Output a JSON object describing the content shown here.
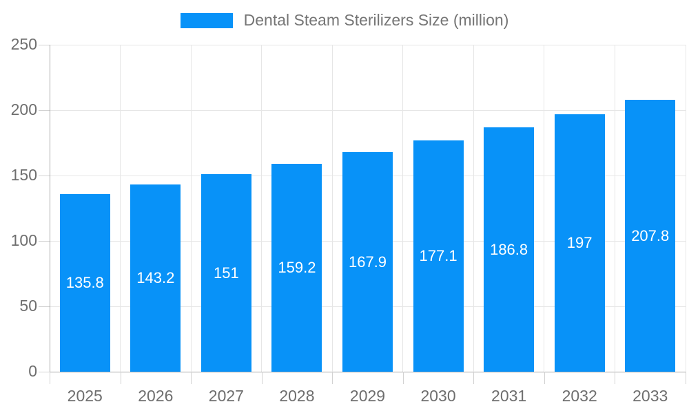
{
  "chart_data": {
    "type": "bar",
    "title": "",
    "series_name": "Dental Steam Sterilizers Size (million)",
    "categories": [
      "2025",
      "2026",
      "2027",
      "2028",
      "2029",
      "2030",
      "2031",
      "2032",
      "2033"
    ],
    "values": [
      135.8,
      143.2,
      151,
      159.2,
      167.9,
      177.1,
      186.8,
      197,
      207.8
    ],
    "labels": [
      "135.8",
      "143.2",
      "151",
      "159.2",
      "167.9",
      "177.1",
      "186.8",
      "197",
      "207.8"
    ],
    "xlabel": "",
    "ylabel": "",
    "y_ticks": [
      0,
      50,
      100,
      150,
      200,
      250
    ],
    "ylim": [
      0,
      250
    ],
    "grid": true,
    "legend_position": "top-center",
    "colors": {
      "bar": "#0892f8",
      "axis_line": "#a8a8a8",
      "gridline": "#e6e6e6",
      "tick": "#d2d2d2",
      "tick_label": "#6e6e6e",
      "legend_text": "#757575",
      "bar_label": "#ffffff",
      "background": "#ffffff"
    }
  }
}
